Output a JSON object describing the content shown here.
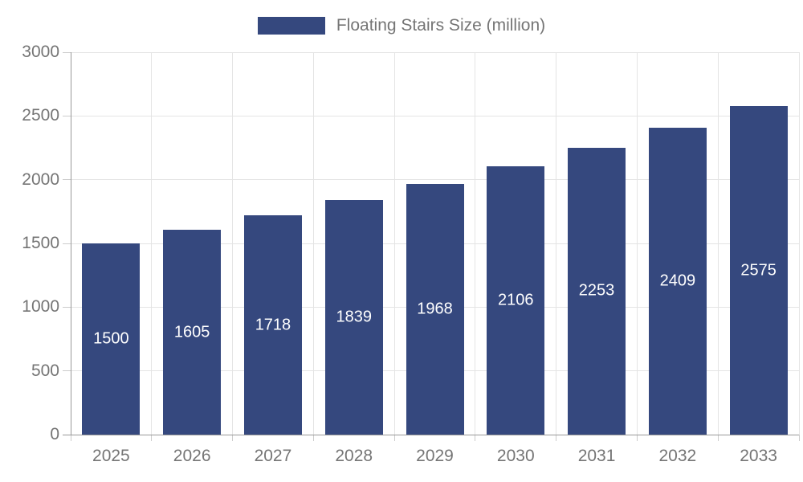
{
  "legend": {
    "label": "Floating Stairs Size (million)"
  },
  "chart_data": {
    "type": "bar",
    "title": "Floating Stairs Size (million)",
    "categories": [
      "2025",
      "2026",
      "2027",
      "2028",
      "2029",
      "2030",
      "2031",
      "2032",
      "2033"
    ],
    "values": [
      1500,
      1605,
      1718,
      1839,
      1968,
      2106,
      2253,
      2409,
      2575
    ],
    "value_labels": [
      "1500",
      "1605",
      "1718",
      "1839",
      "1968",
      "2106",
      "2253",
      "2409",
      "2575"
    ],
    "xlabel": "",
    "ylabel": "",
    "ylim": [
      0,
      3000
    ],
    "ytick_step": 500,
    "yticks": [
      "0",
      "500",
      "1000",
      "1500",
      "2000",
      "2500",
      "3000"
    ],
    "grid": true,
    "legend_position": "top-center",
    "value_label_position": "center-of-bar",
    "colors": {
      "bar": "#35487e",
      "value_text": "#ffffff",
      "axis_text": "#757575",
      "gridline": "#e4e4e4",
      "tick": "#cccccc",
      "axis_line": "#999999"
    }
  }
}
